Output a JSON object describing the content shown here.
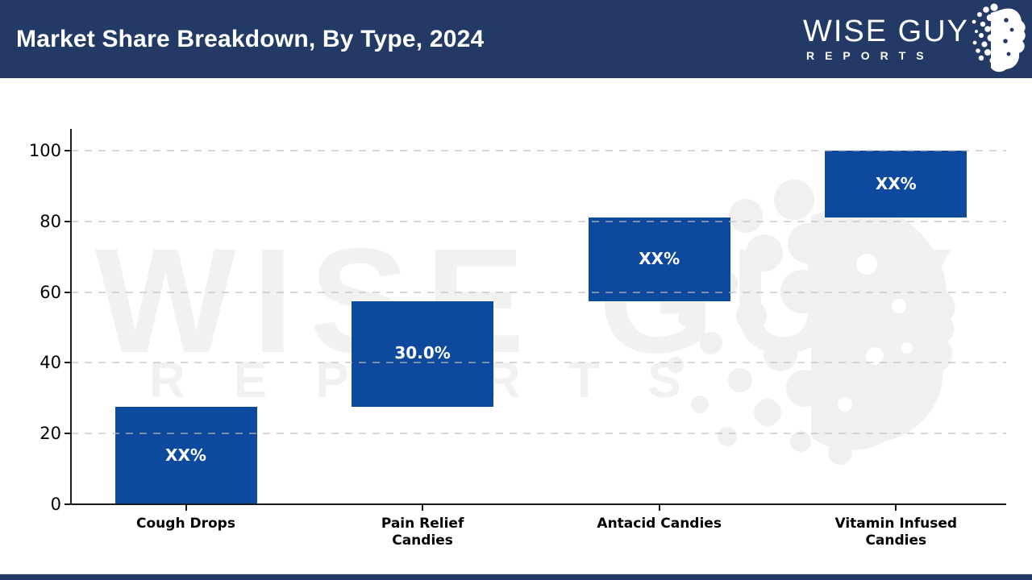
{
  "header": {
    "title": "Market Share Breakdown, By Type, 2024",
    "logo": {
      "wordmark": "WISE GUY",
      "sub": "REPORTS"
    }
  },
  "watermark": {
    "wordmark": "WISE GUY",
    "sub": "REPORTS"
  },
  "chart_data": {
    "type": "bar",
    "subtype": "floating-waterfall",
    "title": "Market Share Breakdown, By Type, 2024",
    "categories": [
      "Cough Drops",
      "Pain Relief Candies",
      "Antacid Candies",
      "Vitamin Infused Candies"
    ],
    "segments": [
      {
        "category": "Cough Drops",
        "label_lines": [
          "Cough Drops"
        ],
        "start": 0,
        "end": 27.5,
        "value_label": "XX%"
      },
      {
        "category": "Pain Relief Candies",
        "label_lines": [
          "Pain Relief",
          "Candies"
        ],
        "start": 27.5,
        "end": 57.5,
        "value_label": "30.0%"
      },
      {
        "category": "Antacid Candies",
        "label_lines": [
          "Antacid Candies"
        ],
        "start": 57.5,
        "end": 81,
        "value_label": "XX%"
      },
      {
        "category": "Vitamin Infused Candies",
        "label_lines": [
          "Vitamin Infused",
          "Candies"
        ],
        "start": 81,
        "end": 100,
        "value_label": "XX%"
      }
    ],
    "xlabel": "",
    "ylabel": "",
    "yticks": [
      0,
      20,
      40,
      60,
      80,
      100
    ],
    "ylim": [
      0,
      106
    ],
    "grid": "horizontal-dashed",
    "legend": "none"
  },
  "colors": {
    "header_bg": "#233A66",
    "footer_bg": "#233A66",
    "bar": "#0D4A9E",
    "grid": "#C4C4C4",
    "axis": "#1A1A1A",
    "watermark": "#F1F1F1",
    "text_on_bar": "#FFFFFF"
  }
}
